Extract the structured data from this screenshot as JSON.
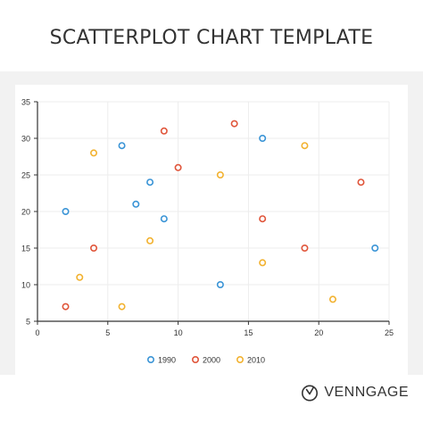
{
  "page": {
    "title": "SCATTERPLOT CHART TEMPLATE",
    "brand": "VENNGAGE",
    "brand_icon": "venngage-logo-icon"
  },
  "colors": {
    "1990": "#3a94d6",
    "2000": "#e0553a",
    "2010": "#f2b230"
  },
  "chart_data": {
    "type": "scatter",
    "title": "SCATTERPLOT CHART TEMPLATE",
    "xlabel": "",
    "ylabel": "",
    "xlim": [
      0,
      25
    ],
    "ylim": [
      5,
      35
    ],
    "xticks": [
      0,
      5,
      10,
      15,
      20,
      25
    ],
    "yticks": [
      5,
      10,
      15,
      20,
      25,
      30,
      35
    ],
    "grid": true,
    "legend": "bottom",
    "series": [
      {
        "name": "1990",
        "color": "#3a94d6",
        "points": [
          [
            2,
            20
          ],
          [
            6,
            29
          ],
          [
            7,
            21
          ],
          [
            8,
            24
          ],
          [
            9,
            19
          ],
          [
            13,
            10
          ],
          [
            16,
            30
          ],
          [
            24,
            15
          ]
        ]
      },
      {
        "name": "2000",
        "color": "#e0553a",
        "points": [
          [
            2,
            7
          ],
          [
            4,
            15
          ],
          [
            9,
            31
          ],
          [
            10,
            26
          ],
          [
            14,
            32
          ],
          [
            16,
            19
          ],
          [
            19,
            15
          ],
          [
            23,
            24
          ]
        ]
      },
      {
        "name": "2010",
        "color": "#f2b230",
        "points": [
          [
            3,
            11
          ],
          [
            4,
            28
          ],
          [
            6,
            7
          ],
          [
            8,
            16
          ],
          [
            13,
            25
          ],
          [
            16,
            13
          ],
          [
            19,
            29
          ],
          [
            21,
            8
          ]
        ]
      }
    ]
  }
}
